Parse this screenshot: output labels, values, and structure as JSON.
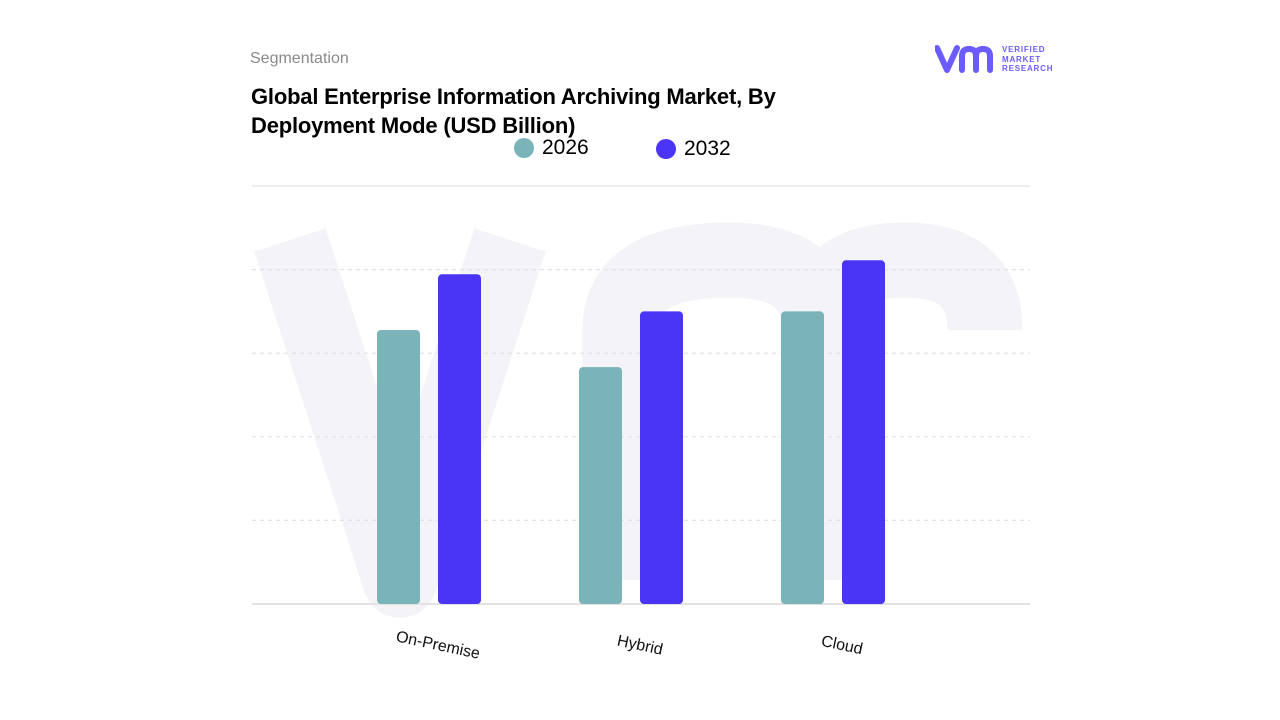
{
  "header": {
    "segment_label": "Segmentation",
    "title": "Global Enterprise Information Archiving Market, By Deployment Mode (USD Billion)"
  },
  "logo": {
    "name": "vmr-logo-icon",
    "line1": "VERIFIED",
    "line2": "MARKET",
    "line3": "RESEARCH"
  },
  "colors": {
    "series_2026": "#7ab3b8",
    "series_2032": "#4a35f5",
    "grid": "#e2e2e2",
    "watermark": "#f3f3f8"
  },
  "chart_data": {
    "type": "bar",
    "title": "Global Enterprise Information Archiving Market, By Deployment Mode (USD Billion)",
    "categories": [
      "On-Premise",
      "Hybrid",
      "Cloud"
    ],
    "series": [
      {
        "name": "2026",
        "values": [
          2.95,
          2.55,
          3.15
        ]
      },
      {
        "name": "2032",
        "values": [
          3.55,
          3.15,
          3.7
        ]
      }
    ],
    "ylim": [
      0,
      4.5
    ],
    "grid": true,
    "legend": "top-center",
    "xlabel": "",
    "ylabel": ""
  }
}
